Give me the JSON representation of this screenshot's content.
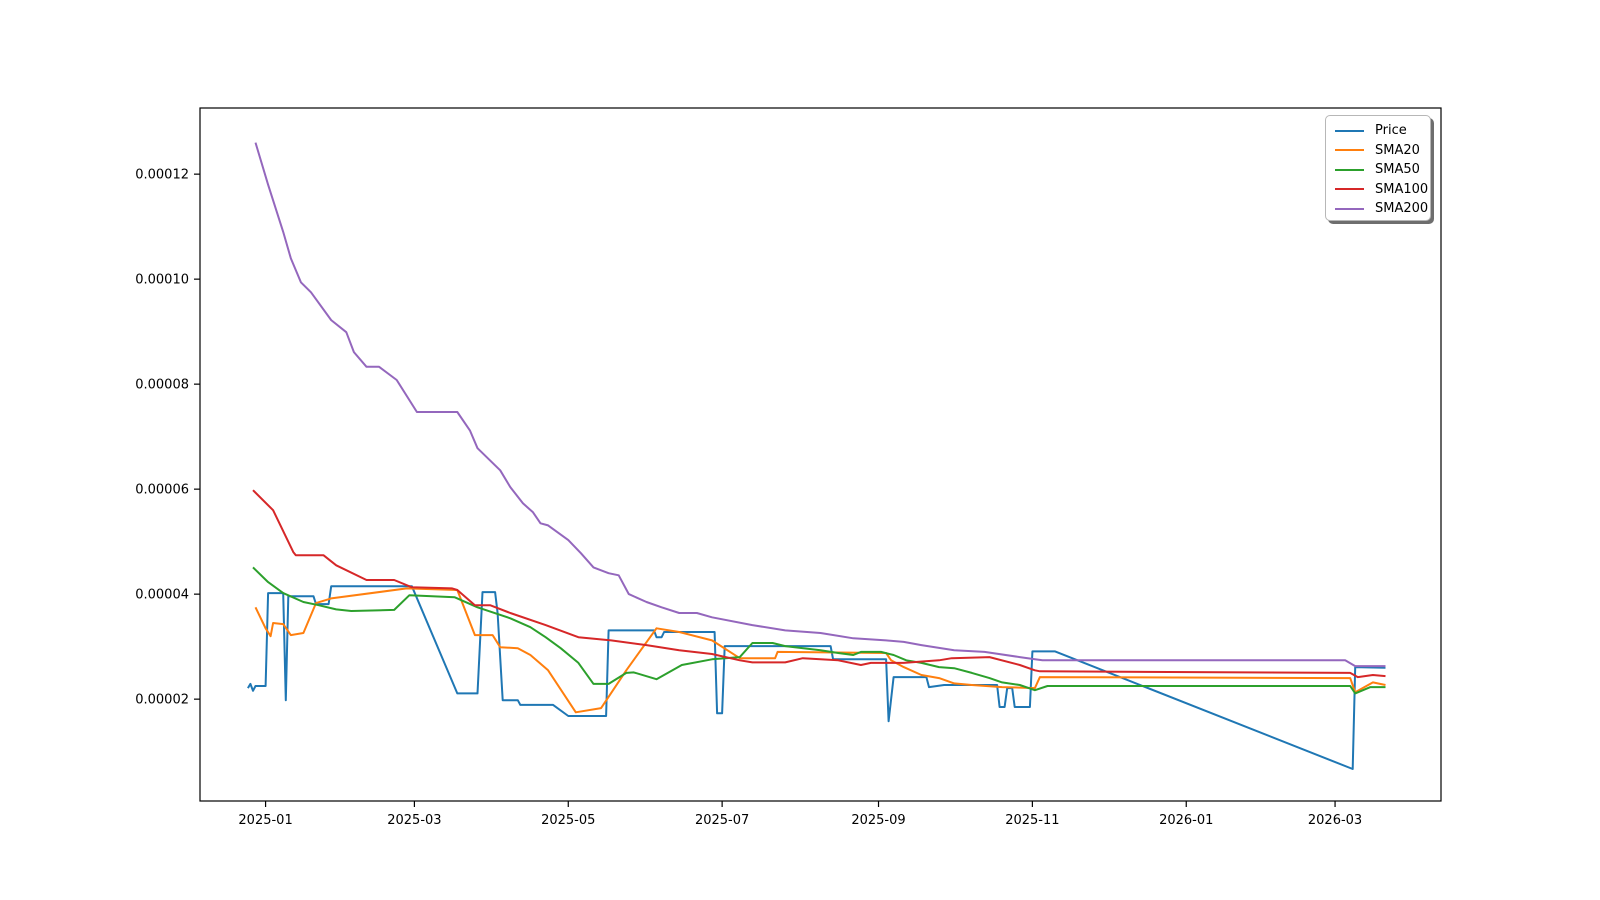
{
  "chart_data": {
    "type": "line",
    "title": "",
    "xlabel": "",
    "ylabel": "",
    "grid": false,
    "axis_color": "#000000",
    "background_color": "#ffffff",
    "legend": {
      "position": "upper-right",
      "entries": [
        "Price",
        "SMA20",
        "SMA50",
        "SMA100",
        "SMA200"
      ]
    },
    "x_axis": {
      "type": "date",
      "range": [
        "2024-12-06",
        "2026-04-12"
      ],
      "ticks": [
        {
          "date": "2025-01-01",
          "label": "2025-01"
        },
        {
          "date": "2025-03-01",
          "label": "2025-03"
        },
        {
          "date": "2025-05-01",
          "label": "2025-05"
        },
        {
          "date": "2025-07-01",
          "label": "2025-07"
        },
        {
          "date": "2025-09-01",
          "label": "2025-09"
        },
        {
          "date": "2025-11-01",
          "label": "2025-11"
        },
        {
          "date": "2026-01-01",
          "label": "2026-01"
        },
        {
          "date": "2026-03-01",
          "label": "2026-03"
        }
      ]
    },
    "y_axis": {
      "range": [
        6e-07,
        0.0001326
      ],
      "ticks": [
        {
          "value": 2e-05,
          "label": "0.00002"
        },
        {
          "value": 4e-05,
          "label": "0.00004"
        },
        {
          "value": 6e-05,
          "label": "0.00006"
        },
        {
          "value": 8e-05,
          "label": "0.00008"
        },
        {
          "value": 0.0001,
          "label": "0.00010"
        },
        {
          "value": 0.00012,
          "label": "0.00012"
        }
      ]
    },
    "series": [
      {
        "name": "Price",
        "color": "#1f77b4",
        "points": [
          [
            "2024-12-25",
            2.21e-05
          ],
          [
            "2024-12-26",
            2.29e-05
          ],
          [
            "2024-12-27",
            2.16e-05
          ],
          [
            "2024-12-28",
            2.25e-05
          ],
          [
            "2025-01-01",
            2.25e-05
          ],
          [
            "2025-01-02",
            4.02e-05
          ],
          [
            "2025-01-08",
            4.02e-05
          ],
          [
            "2025-01-09",
            1.98e-05
          ],
          [
            "2025-01-10",
            3.96e-05
          ],
          [
            "2025-01-20",
            3.96e-05
          ],
          [
            "2025-01-21",
            3.81e-05
          ],
          [
            "2025-01-26",
            3.81e-05
          ],
          [
            "2025-01-27",
            4.15e-05
          ],
          [
            "2025-02-28",
            4.15e-05
          ],
          [
            "2025-03-18",
            2.11e-05
          ],
          [
            "2025-03-26",
            2.11e-05
          ],
          [
            "2025-03-28",
            4.04e-05
          ],
          [
            "2025-04-02",
            4.04e-05
          ],
          [
            "2025-04-03",
            3.64e-05
          ],
          [
            "2025-04-05",
            1.98e-05
          ],
          [
            "2025-04-11",
            1.98e-05
          ],
          [
            "2025-04-12",
            1.89e-05
          ],
          [
            "2025-04-25",
            1.89e-05
          ],
          [
            "2025-05-01",
            1.68e-05
          ],
          [
            "2025-05-16",
            1.68e-05
          ],
          [
            "2025-05-17",
            3.31e-05
          ],
          [
            "2025-06-04",
            3.31e-05
          ],
          [
            "2025-06-05",
            3.18e-05
          ],
          [
            "2025-06-07",
            3.18e-05
          ],
          [
            "2025-06-08",
            3.28e-05
          ],
          [
            "2025-06-28",
            3.28e-05
          ],
          [
            "2025-06-29",
            1.73e-05
          ],
          [
            "2025-07-01",
            1.73e-05
          ],
          [
            "2025-07-02",
            3.01e-05
          ],
          [
            "2025-08-13",
            3.01e-05
          ],
          [
            "2025-08-14",
            2.76e-05
          ],
          [
            "2025-09-04",
            2.76e-05
          ],
          [
            "2025-09-05",
            1.58e-05
          ],
          [
            "2025-09-07",
            2.42e-05
          ],
          [
            "2025-09-20",
            2.42e-05
          ],
          [
            "2025-09-21",
            2.23e-05
          ],
          [
            "2025-09-27",
            2.27e-05
          ],
          [
            "2025-10-18",
            2.27e-05
          ],
          [
            "2025-10-19",
            1.85e-05
          ],
          [
            "2025-10-21",
            1.85e-05
          ],
          [
            "2025-10-22",
            2.21e-05
          ],
          [
            "2025-10-24",
            2.21e-05
          ],
          [
            "2025-10-25",
            1.85e-05
          ],
          [
            "2025-10-31",
            1.85e-05
          ],
          [
            "2025-11-01",
            2.91e-05
          ],
          [
            "2025-11-10",
            2.91e-05
          ],
          [
            "2026-03-08",
            6.7e-06
          ],
          [
            "2026-03-09",
            2.61e-05
          ],
          [
            "2026-03-21",
            2.6e-05
          ]
        ]
      },
      {
        "name": "SMA20",
        "color": "#ff7f0e",
        "points": [
          [
            "2024-12-28",
            3.75e-05
          ],
          [
            "2025-01-01",
            3.35e-05
          ],
          [
            "2025-01-03",
            3.2e-05
          ],
          [
            "2025-01-04",
            3.45e-05
          ],
          [
            "2025-01-08",
            3.43e-05
          ],
          [
            "2025-01-11",
            3.22e-05
          ],
          [
            "2025-01-16",
            3.26e-05
          ],
          [
            "2025-01-21",
            3.83e-05
          ],
          [
            "2025-01-27",
            3.92e-05
          ],
          [
            "2025-02-26",
            4.11e-05
          ],
          [
            "2025-03-18",
            4.08e-05
          ],
          [
            "2025-03-25",
            3.22e-05
          ],
          [
            "2025-04-01",
            3.22e-05
          ],
          [
            "2025-04-04",
            2.99e-05
          ],
          [
            "2025-04-11",
            2.97e-05
          ],
          [
            "2025-04-16",
            2.84e-05
          ],
          [
            "2025-04-23",
            2.55e-05
          ],
          [
            "2025-05-04",
            1.75e-05
          ],
          [
            "2025-05-14",
            1.83e-05
          ],
          [
            "2025-05-24",
            2.55e-05
          ],
          [
            "2025-06-05",
            3.35e-05
          ],
          [
            "2025-06-14",
            3.28e-05
          ],
          [
            "2025-06-27",
            3.12e-05
          ],
          [
            "2025-07-08",
            2.78e-05
          ],
          [
            "2025-07-22",
            2.78e-05
          ],
          [
            "2025-07-23",
            2.9e-05
          ],
          [
            "2025-09-04",
            2.88e-05
          ],
          [
            "2025-09-06",
            2.74e-05
          ],
          [
            "2025-09-11",
            2.61e-05
          ],
          [
            "2025-09-18",
            2.46e-05
          ],
          [
            "2025-09-25",
            2.4e-05
          ],
          [
            "2025-10-01",
            2.3e-05
          ],
          [
            "2025-10-08",
            2.27e-05
          ],
          [
            "2025-10-20",
            2.23e-05
          ],
          [
            "2025-11-02",
            2.21e-05
          ],
          [
            "2025-11-04",
            2.42e-05
          ],
          [
            "2026-03-07",
            2.4e-05
          ],
          [
            "2026-03-09",
            2.13e-05
          ],
          [
            "2026-03-16",
            2.32e-05
          ],
          [
            "2026-03-21",
            2.27e-05
          ]
        ]
      },
      {
        "name": "SMA50",
        "color": "#2ca02c",
        "points": [
          [
            "2024-12-27",
            4.51e-05
          ],
          [
            "2025-01-02",
            4.23e-05
          ],
          [
            "2025-01-08",
            4.02e-05
          ],
          [
            "2025-01-16",
            3.85e-05
          ],
          [
            "2025-01-22",
            3.79e-05
          ],
          [
            "2025-01-29",
            3.71e-05
          ],
          [
            "2025-02-04",
            3.68e-05
          ],
          [
            "2025-02-21",
            3.7e-05
          ],
          [
            "2025-02-27",
            3.98e-05
          ],
          [
            "2025-03-17",
            3.94e-05
          ],
          [
            "2025-03-26",
            3.75e-05
          ],
          [
            "2025-04-08",
            3.54e-05
          ],
          [
            "2025-04-16",
            3.37e-05
          ],
          [
            "2025-04-22",
            3.18e-05
          ],
          [
            "2025-04-28",
            2.97e-05
          ],
          [
            "2025-05-05",
            2.69e-05
          ],
          [
            "2025-05-11",
            2.29e-05
          ],
          [
            "2025-05-17",
            2.29e-05
          ],
          [
            "2025-05-24",
            2.5e-05
          ],
          [
            "2025-05-27",
            2.51e-05
          ],
          [
            "2025-06-05",
            2.38e-05
          ],
          [
            "2025-06-15",
            2.65e-05
          ],
          [
            "2025-06-27",
            2.76e-05
          ],
          [
            "2025-07-08",
            2.8e-05
          ],
          [
            "2025-07-13",
            3.07e-05
          ],
          [
            "2025-07-21",
            3.07e-05
          ],
          [
            "2025-07-26",
            3.01e-05
          ],
          [
            "2025-08-09",
            2.93e-05
          ],
          [
            "2025-08-16",
            2.88e-05
          ],
          [
            "2025-08-22",
            2.84e-05
          ],
          [
            "2025-08-25",
            2.9e-05
          ],
          [
            "2025-09-02",
            2.9e-05
          ],
          [
            "2025-09-07",
            2.84e-05
          ],
          [
            "2025-09-12",
            2.74e-05
          ],
          [
            "2025-09-18",
            2.69e-05
          ],
          [
            "2025-09-25",
            2.61e-05
          ],
          [
            "2025-10-01",
            2.59e-05
          ],
          [
            "2025-10-08",
            2.5e-05
          ],
          [
            "2025-10-15",
            2.4e-05
          ],
          [
            "2025-10-20",
            2.32e-05
          ],
          [
            "2025-10-27",
            2.27e-05
          ],
          [
            "2025-11-02",
            2.17e-05
          ],
          [
            "2025-11-07",
            2.25e-05
          ],
          [
            "2026-03-07",
            2.25e-05
          ],
          [
            "2026-03-09",
            2.11e-05
          ],
          [
            "2026-03-15",
            2.23e-05
          ],
          [
            "2026-03-21",
            2.23e-05
          ]
        ]
      },
      {
        "name": "SMA100",
        "color": "#d62728",
        "points": [
          [
            "2024-12-27",
            5.98e-05
          ],
          [
            "2025-01-04",
            5.6e-05
          ],
          [
            "2025-01-12",
            4.8e-05
          ],
          [
            "2025-01-13",
            4.74e-05
          ],
          [
            "2025-01-24",
            4.74e-05
          ],
          [
            "2025-01-29",
            4.55e-05
          ],
          [
            "2025-02-10",
            4.27e-05
          ],
          [
            "2025-02-21",
            4.27e-05
          ],
          [
            "2025-02-28",
            4.13e-05
          ],
          [
            "2025-03-16",
            4.11e-05
          ],
          [
            "2025-03-18",
            4.08e-05
          ],
          [
            "2025-03-25",
            3.79e-05
          ],
          [
            "2025-03-31",
            3.79e-05
          ],
          [
            "2025-04-08",
            3.64e-05
          ],
          [
            "2025-04-22",
            3.41e-05
          ],
          [
            "2025-05-05",
            3.18e-05
          ],
          [
            "2025-05-18",
            3.12e-05
          ],
          [
            "2025-06-01",
            3.03e-05
          ],
          [
            "2025-06-14",
            2.93e-05
          ],
          [
            "2025-06-27",
            2.86e-05
          ],
          [
            "2025-07-08",
            2.74e-05
          ],
          [
            "2025-07-13",
            2.7e-05
          ],
          [
            "2025-07-26",
            2.7e-05
          ],
          [
            "2025-08-02",
            2.78e-05
          ],
          [
            "2025-08-16",
            2.74e-05
          ],
          [
            "2025-08-25",
            2.65e-05
          ],
          [
            "2025-08-29",
            2.69e-05
          ],
          [
            "2025-09-11",
            2.69e-05
          ],
          [
            "2025-09-25",
            2.74e-05
          ],
          [
            "2025-09-30",
            2.78e-05
          ],
          [
            "2025-10-15",
            2.8e-05
          ],
          [
            "2025-10-27",
            2.65e-05
          ],
          [
            "2025-11-02",
            2.55e-05
          ],
          [
            "2025-11-04",
            2.53e-05
          ],
          [
            "2026-03-07",
            2.5e-05
          ],
          [
            "2026-03-10",
            2.42e-05
          ],
          [
            "2026-03-16",
            2.46e-05
          ],
          [
            "2026-03-21",
            2.44e-05
          ]
        ]
      },
      {
        "name": "SMA200",
        "color": "#9467bd",
        "points": [
          [
            "2024-12-28",
            0.000126
          ],
          [
            "2025-01-02",
            0.000118
          ],
          [
            "2025-01-08",
            0.000109
          ],
          [
            "2025-01-11",
            0.000104
          ],
          [
            "2025-01-15",
            9.94e-05
          ],
          [
            "2025-01-19",
            9.75e-05
          ],
          [
            "2025-01-27",
            9.22e-05
          ],
          [
            "2025-02-02",
            8.99e-05
          ],
          [
            "2025-02-05",
            8.61e-05
          ],
          [
            "2025-02-10",
            8.33e-05
          ],
          [
            "2025-02-15",
            8.33e-05
          ],
          [
            "2025-02-22",
            8.08e-05
          ],
          [
            "2025-03-02",
            7.47e-05
          ],
          [
            "2025-03-18",
            7.47e-05
          ],
          [
            "2025-03-23",
            7.12e-05
          ],
          [
            "2025-03-26",
            6.78e-05
          ],
          [
            "2025-04-04",
            6.36e-05
          ],
          [
            "2025-04-08",
            6.04e-05
          ],
          [
            "2025-04-13",
            5.73e-05
          ],
          [
            "2025-04-17",
            5.56e-05
          ],
          [
            "2025-04-20",
            5.35e-05
          ],
          [
            "2025-04-23",
            5.31e-05
          ],
          [
            "2025-05-01",
            5.03e-05
          ],
          [
            "2025-05-06",
            4.78e-05
          ],
          [
            "2025-05-11",
            4.51e-05
          ],
          [
            "2025-05-17",
            4.4e-05
          ],
          [
            "2025-05-21",
            4.36e-05
          ],
          [
            "2025-05-25",
            4e-05
          ],
          [
            "2025-06-01",
            3.85e-05
          ],
          [
            "2025-06-07",
            3.75e-05
          ],
          [
            "2025-06-14",
            3.64e-05
          ],
          [
            "2025-06-21",
            3.64e-05
          ],
          [
            "2025-06-27",
            3.56e-05
          ],
          [
            "2025-07-13",
            3.41e-05
          ],
          [
            "2025-07-26",
            3.31e-05
          ],
          [
            "2025-08-09",
            3.26e-05
          ],
          [
            "2025-08-22",
            3.16e-05
          ],
          [
            "2025-09-04",
            3.12e-05
          ],
          [
            "2025-09-11",
            3.09e-05
          ],
          [
            "2025-09-18",
            3.03e-05
          ],
          [
            "2025-10-01",
            2.93e-05
          ],
          [
            "2025-10-13",
            2.9e-05
          ],
          [
            "2025-10-27",
            2.8e-05
          ],
          [
            "2025-11-02",
            2.76e-05
          ],
          [
            "2025-11-05",
            2.74e-05
          ],
          [
            "2026-03-05",
            2.74e-05
          ],
          [
            "2026-03-09",
            2.63e-05
          ],
          [
            "2026-03-21",
            2.63e-05
          ]
        ]
      }
    ]
  }
}
